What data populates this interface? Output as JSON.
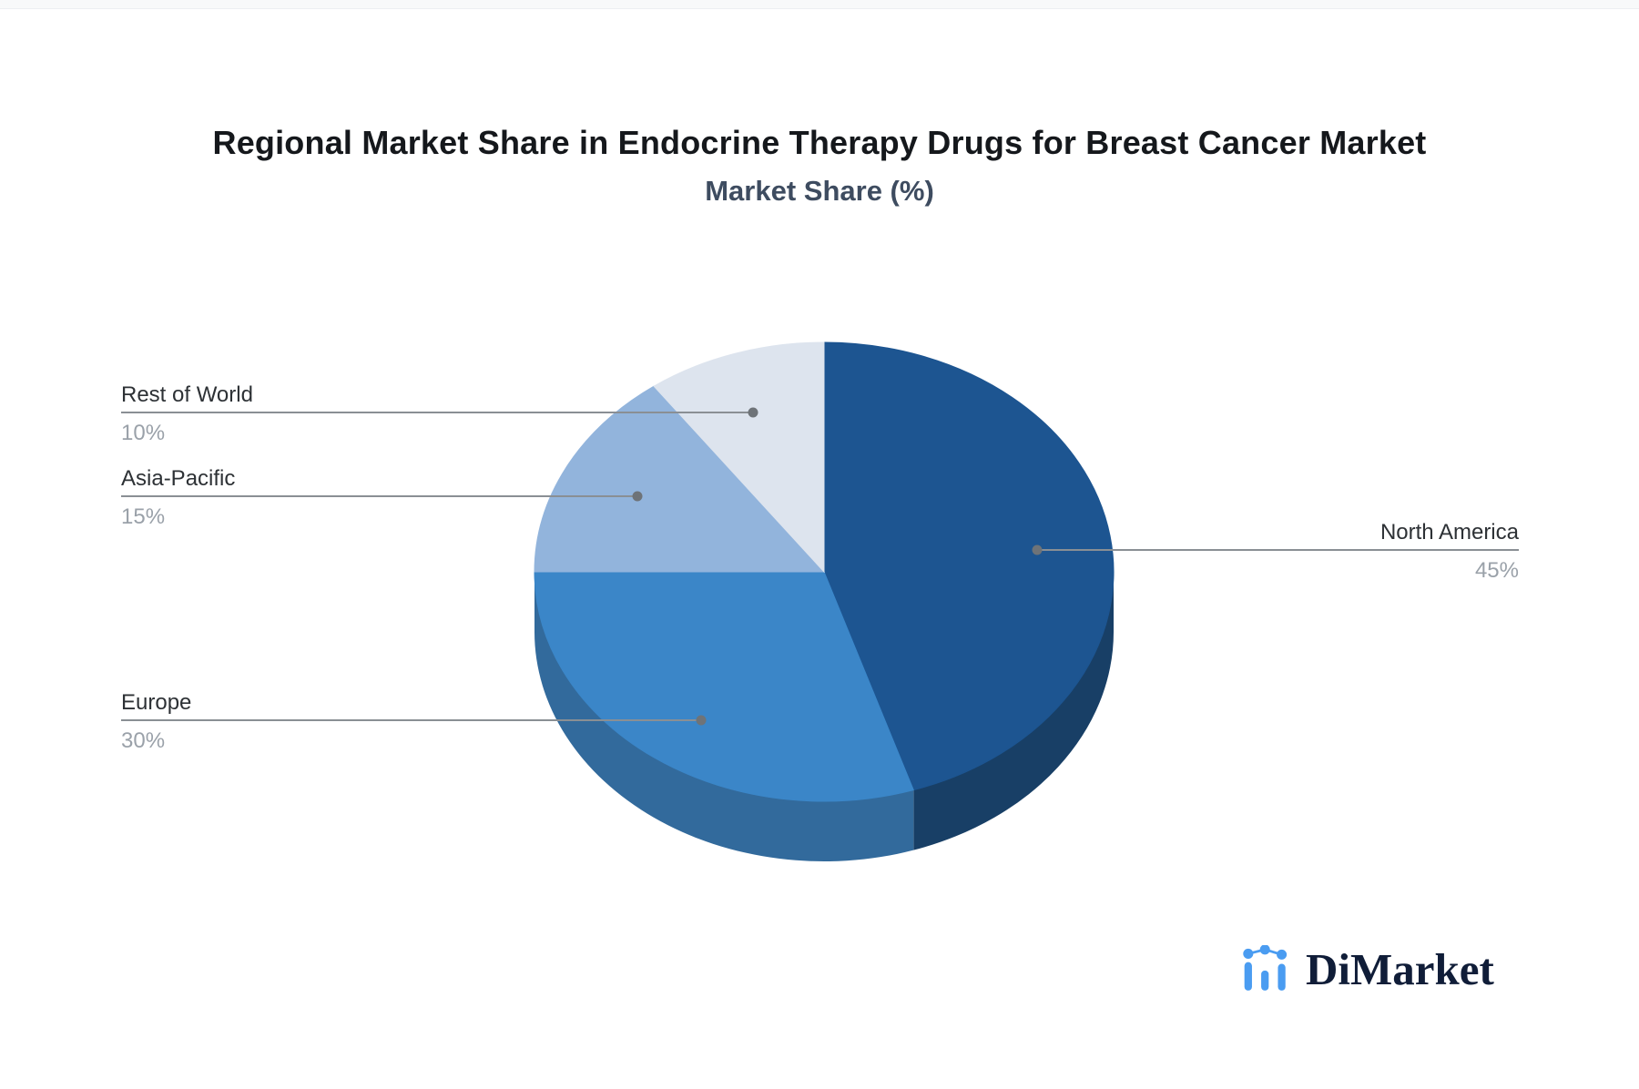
{
  "chart_data": {
    "type": "pie",
    "title": "Regional Market Share in Endocrine Therapy Drugs for Breast Cancer Market",
    "subtitle": "Market Share (%)",
    "unit": "%",
    "style_3d": true,
    "start_angle": "12-o-clock",
    "direction": "clockwise",
    "slices": [
      {
        "label": "North America",
        "value": 45,
        "percent_label": "45%",
        "color": "#1d5591",
        "rim_color": "#183f66"
      },
      {
        "label": "Europe",
        "value": 30,
        "percent_label": "30%",
        "color": "#3b86c8",
        "rim_color": "#326a9c"
      },
      {
        "label": "Asia-Pacific",
        "value": 15,
        "percent_label": "15%",
        "color": "#92b4dc",
        "rim_color": "#7b9cc4"
      },
      {
        "label": "Rest of World",
        "value": 10,
        "percent_label": "10%",
        "color": "#dde4ee",
        "rim_color": "#c2cbd9"
      }
    ]
  },
  "branding": {
    "logo_text": "DiMarket",
    "logo_icon_color": "#4a9cf1",
    "logo_text_color": "#101d38"
  },
  "style": {
    "title_color": "#15181c",
    "subtitle_color": "#3e4c60",
    "label_color": "#2d3135",
    "percent_color": "#9aa1a9",
    "leader_line_color": "#8a8f94",
    "leader_dot_color": "#6e7378",
    "background": "#ffffff"
  }
}
